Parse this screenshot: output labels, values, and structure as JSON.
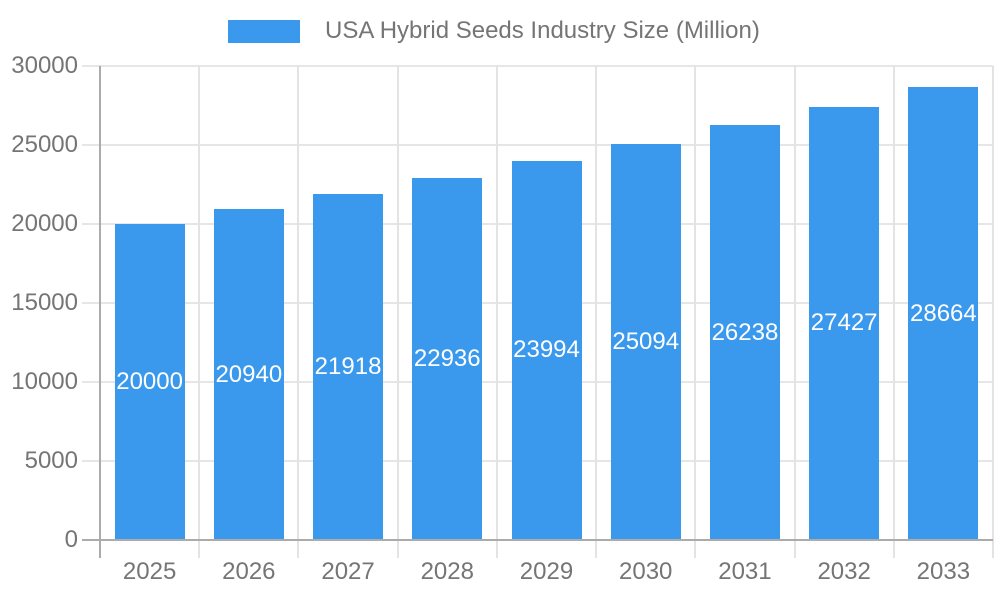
{
  "legend": {
    "label": "USA Hybrid Seeds Industry Size (Million)"
  },
  "chart_data": {
    "type": "bar",
    "title": "USA Hybrid Seeds Industry Size (Million)",
    "series_name": "USA Hybrid Seeds Industry Size (Million)",
    "categories": [
      "2025",
      "2026",
      "2027",
      "2028",
      "2029",
      "2030",
      "2031",
      "2032",
      "2033"
    ],
    "values": [
      20000,
      20940,
      21918,
      22936,
      23994,
      25094,
      26238,
      27427,
      28664
    ],
    "xlabel": "",
    "ylabel": "",
    "ylim": [
      0,
      30000
    ],
    "yticks": [
      0,
      5000,
      10000,
      15000,
      20000,
      25000,
      30000
    ],
    "grid": true,
    "legend_position": "top-center",
    "bar_labels_inside": true,
    "colors": {
      "bar": "#3A99EC",
      "bar_label_text": "#ffffff",
      "axis_text": "#757575",
      "legend_text": "#757575",
      "gridline_h": "#e6e6e6",
      "gridline_v": "#e3e3e3",
      "axis_line": "#ababab",
      "background": "#ffffff"
    }
  }
}
